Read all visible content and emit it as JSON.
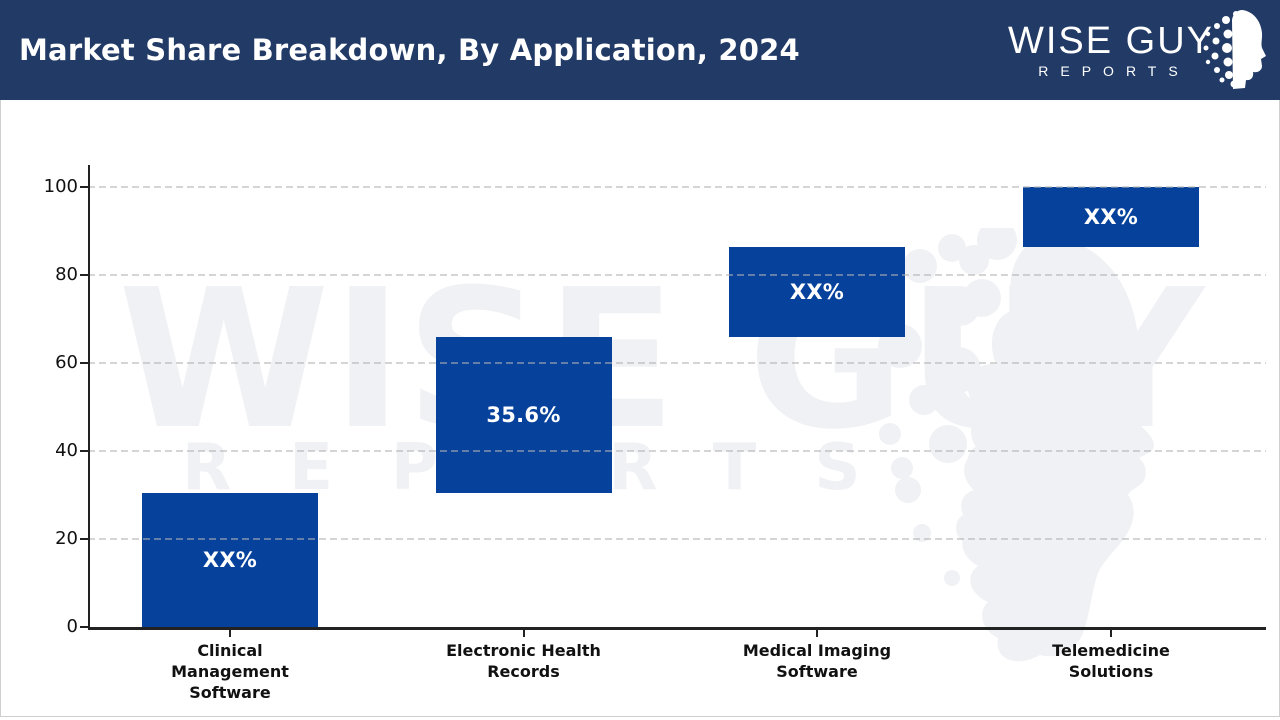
{
  "header": {
    "title": "Market Share Breakdown, By Application, 2024",
    "logo": {
      "line1": "WISE GUY",
      "line2": "REPORTS"
    }
  },
  "watermark": {
    "line1": "WISE GUY",
    "line2": "REPORTS"
  },
  "colors": {
    "header_background": "#213a66",
    "bar_fill": "#06419c",
    "watermark_gray": "#f0f1f4",
    "gridline_gray": "#d6d6d6",
    "axis_black": "#222222"
  },
  "chart_data": {
    "type": "bar",
    "subtype": "waterfall-floating-bars",
    "title": "Market Share Breakdown, By Application, 2024",
    "xlabel": "",
    "ylabel": "",
    "ylim": [
      0,
      105
    ],
    "yticks": [
      0,
      20,
      40,
      60,
      80,
      100
    ],
    "grid": "horizontal-dashed",
    "legend": "none",
    "categories": [
      "Clinical Management Software",
      "Electronic Health Records",
      "Medical Imaging Software",
      "Telemedicine Solutions"
    ],
    "category_lines": [
      [
        "Clinical",
        "Management",
        "Software"
      ],
      [
        "Electronic Health",
        "Records"
      ],
      [
        "Medical Imaging",
        "Software"
      ],
      [
        "Telemedicine",
        "Solutions"
      ]
    ],
    "bars": [
      {
        "category": "Clinical Management Software",
        "start": 0,
        "end": 30.4,
        "value": 30.4,
        "label": "XX%"
      },
      {
        "category": "Electronic Health Records",
        "start": 30.4,
        "end": 66.0,
        "value": 35.6,
        "label": "35.6%"
      },
      {
        "category": "Medical Imaging Software",
        "start": 66.0,
        "end": 86.4,
        "value": 20.4,
        "label": "XX%"
      },
      {
        "category": "Telemedicine Solutions",
        "start": 86.4,
        "end": 100.0,
        "value": 13.6,
        "label": "XX%"
      }
    ]
  }
}
